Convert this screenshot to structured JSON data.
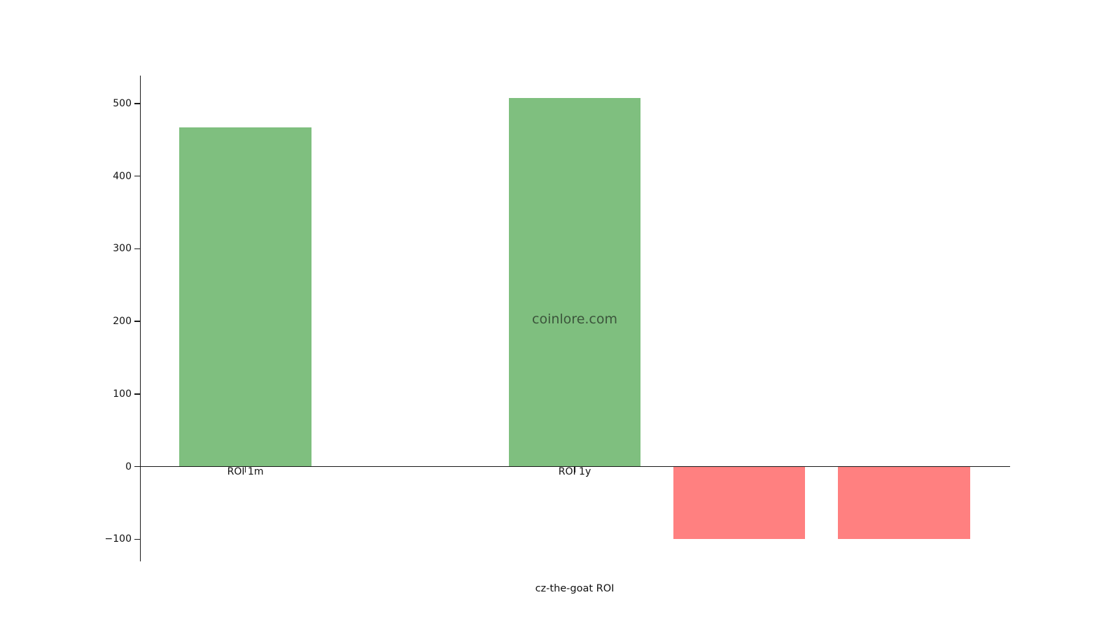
{
  "chart_data": {
    "type": "bar",
    "title": "",
    "xlabel": "cz-the-goat ROI",
    "ylabel": "",
    "watermark": "coinlore.com",
    "grid": false,
    "legend": null,
    "ylim": [
      -130.4,
      538.4
    ],
    "xlim": [
      -0.64,
      4.64
    ],
    "bar_width_units": 0.8,
    "y_ticks": [
      500,
      400,
      300,
      200,
      100,
      0,
      -100
    ],
    "bars": [
      {
        "label": "ROI 1m",
        "slot": 0,
        "value": 467
      },
      {
        "label": "ROI 1y",
        "slot": 2,
        "value": 508
      },
      {
        "label": "",
        "slot": 3,
        "value": -100
      },
      {
        "label": "",
        "slot": 4,
        "value": -100
      }
    ],
    "colors": {
      "positive_bar": "#7fbf7f",
      "negative_bar": "#ff8080",
      "axis_line": "#1a1a1a",
      "tick_text": "#111111"
    }
  }
}
